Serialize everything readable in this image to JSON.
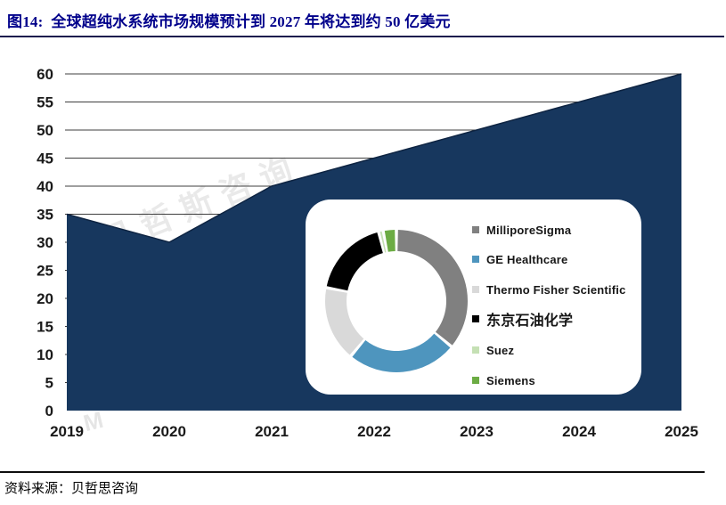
{
  "header": {
    "title": "图14:  全球超纯水系统市场规模预计到 2027 年将达到约 50 亿美元"
  },
  "watermark": {
    "text": "贝哲斯咨询",
    "fragment": "M"
  },
  "chart_data": [
    {
      "type": "area",
      "title": "全球超纯水系统市场规模预计到 2027 年将达到约 50 亿美元",
      "x": [
        "2019",
        "2020",
        "2021",
        "2022",
        "2023",
        "2024",
        "2025"
      ],
      "values": [
        35,
        30,
        40,
        45,
        50,
        55,
        60
      ],
      "xlabel": "",
      "ylabel": "",
      "ylim": [
        0,
        60
      ],
      "ytick_step": 5,
      "grid": true,
      "legend_position": "none",
      "area_color": "#17375E",
      "line_color": "#0E2442",
      "grid_color": "#3f3f3f"
    },
    {
      "type": "donut",
      "title": "",
      "legend_position": "right",
      "series": [
        {
          "name": "MilliporeSigma",
          "value": 36,
          "color": "#808080"
        },
        {
          "name": "GE Healthcare",
          "value": 25,
          "color": "#4E95BE"
        },
        {
          "name": "Thermo Fisher Scientific",
          "value": 17,
          "color": "#D9D9D9"
        },
        {
          "name": "东京石油化学",
          "value": 18,
          "color": "#000000"
        },
        {
          "name": "Suez",
          "value": 1,
          "color": "#C5E0B4"
        },
        {
          "name": "Siemens",
          "value": 3,
          "color": "#6CAC44"
        }
      ]
    }
  ],
  "footer": {
    "source": "资料来源：贝哲思咨询"
  }
}
